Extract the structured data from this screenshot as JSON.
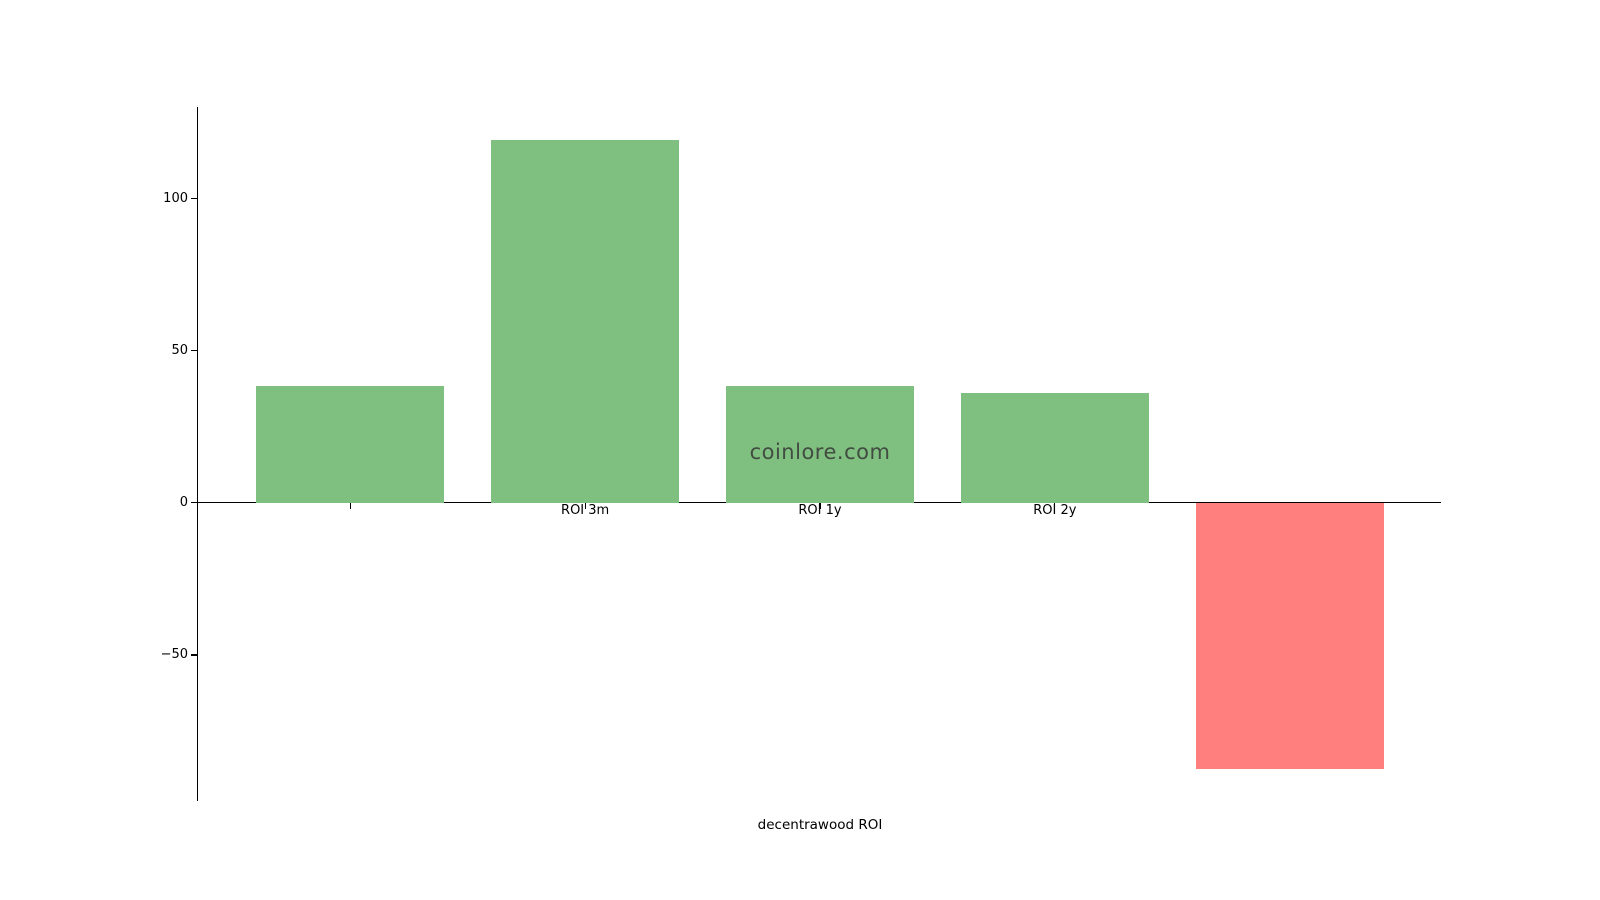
{
  "page": {
    "background": "#ffffff"
  },
  "watermark": {
    "text": "coinlore.com"
  },
  "chart_data": {
    "type": "bar",
    "title": "decentrawood ROI",
    "categories": [
      "",
      "ROI 3m",
      "ROI 1y",
      "ROI 2y",
      ""
    ],
    "values": [
      38.4,
      119.3,
      38.3,
      35.9,
      -87.5
    ],
    "series": [
      {
        "name": "decentrawood ROI %",
        "values": [
          38.4,
          119.3,
          38.3,
          35.9,
          -87.5
        ]
      }
    ],
    "positive_color": "#7fbf7f",
    "negative_color": "#ff7f7f",
    "axis_color": "#000000",
    "xlabel": "",
    "ylabel": "",
    "yticks": [
      100,
      50,
      0,
      -50
    ],
    "ylim": [
      -98,
      129.7
    ],
    "xlim": [
      -0.64,
      4.64
    ],
    "grid": false,
    "legend": null,
    "bar_width_fraction": 0.8
  }
}
